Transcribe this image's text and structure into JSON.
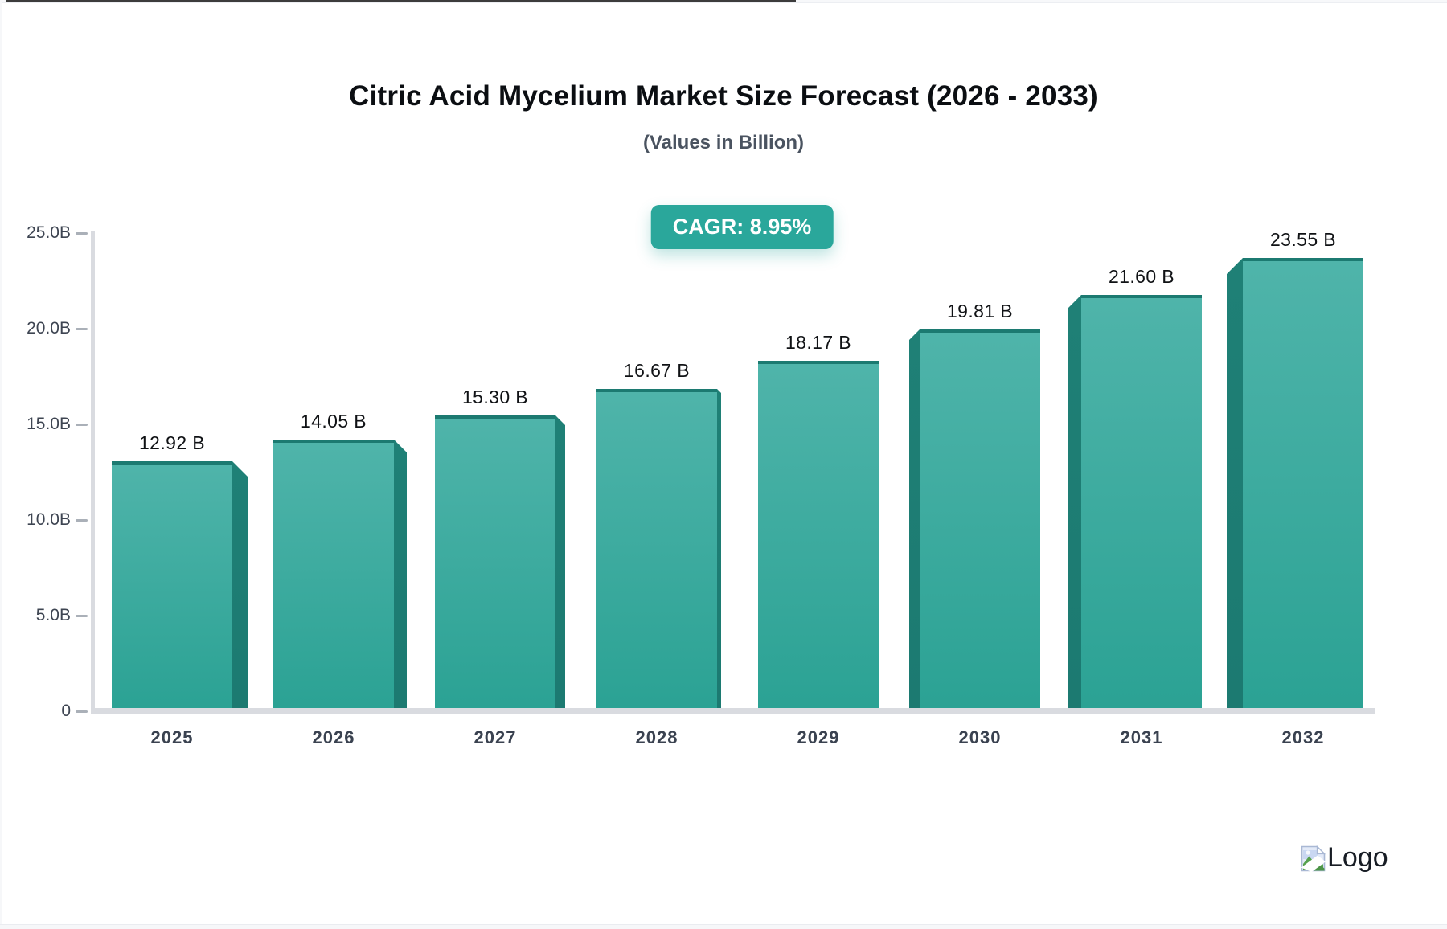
{
  "header": {
    "title": "Citric Acid Mycelium Market Size Forecast (2026 - 2033)",
    "subtitle": "(Values in Billion)"
  },
  "badge": {
    "label": "CAGR: 8.95%"
  },
  "footer": {
    "logo_alt": "Logo"
  },
  "chart_data": {
    "type": "bar",
    "title": "Citric Acid Mycelium Market Size Forecast (2026 - 2033)",
    "subtitle": "(Values in Billion)",
    "cagr_label": "CAGR: 8.95%",
    "categories": [
      "2025",
      "2026",
      "2027",
      "2028",
      "2029",
      "2030",
      "2031",
      "2032"
    ],
    "values": [
      12.92,
      14.05,
      15.3,
      16.67,
      18.17,
      19.81,
      21.6,
      23.55
    ],
    "value_labels": [
      "12.92 B",
      "14.05 B",
      "15.30 B",
      "16.67 B",
      "18.17 B",
      "19.81 B",
      "21.60 B",
      "23.55 B"
    ],
    "y_ticks": [
      "25.0B",
      "20.0B",
      "15.0B",
      "10.0B",
      "5.0B",
      "0"
    ],
    "ylim": [
      0,
      25
    ],
    "xlabel": "",
    "ylabel": "",
    "grid": false,
    "legend_position": "none",
    "colors": {
      "bar_face_top": "#4fb4aa",
      "bar_face_bottom": "#2ba294",
      "bar_side": "#1f8076",
      "bar_top_edge": "#1c7a71",
      "axis": "#d9dbe0",
      "tick": "#aab0b8",
      "badge_bg": "#2aa79b",
      "badge_text": "#ffffff"
    }
  }
}
